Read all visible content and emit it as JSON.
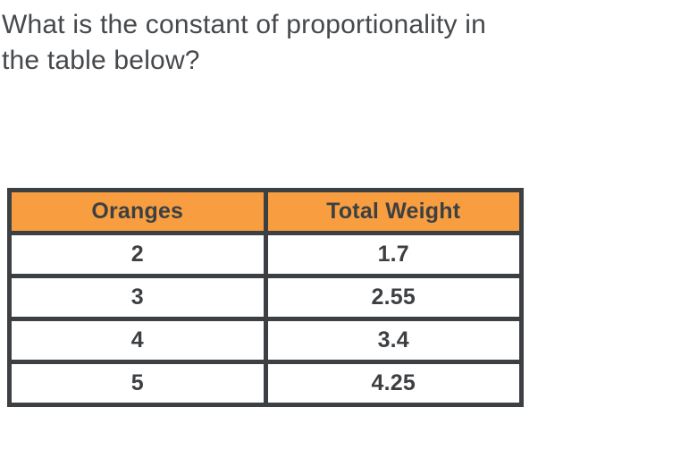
{
  "question": {
    "line1": "What is the constant of proportionality in",
    "line2": "the table below?"
  },
  "table": {
    "headers": [
      "Oranges",
      "Total Weight"
    ],
    "rows": [
      [
        "2",
        "1.7"
      ],
      [
        "3",
        "2.55"
      ],
      [
        "4",
        "3.4"
      ],
      [
        "5",
        "4.25"
      ]
    ]
  },
  "colors": {
    "header_background": "#f89e40",
    "table_border": "#3d4043",
    "table_text": "#3d4043",
    "question_text": "#45484c",
    "page_background": "#ffffff"
  }
}
